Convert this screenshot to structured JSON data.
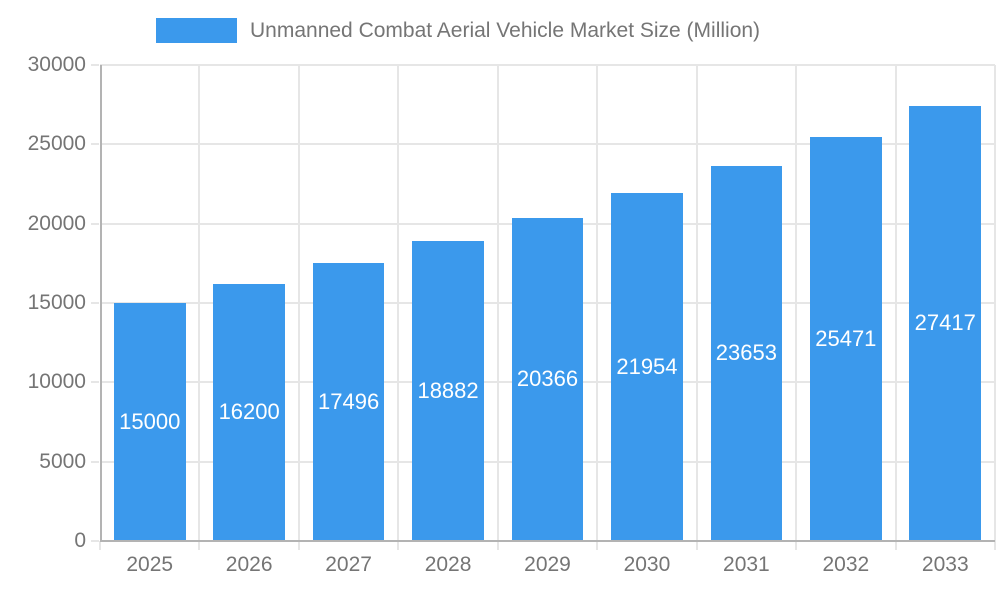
{
  "chart_data": {
    "type": "bar",
    "title": "Unmanned Combat Aerial Vehicle Market Size (Million)",
    "categories": [
      "2025",
      "2026",
      "2027",
      "2028",
      "2029",
      "2030",
      "2031",
      "2032",
      "2033"
    ],
    "values": [
      15000,
      16200,
      17496,
      18882,
      20366,
      21954,
      23653,
      25471,
      27417
    ],
    "series": [
      {
        "name": "Unmanned Combat Aerial Vehicle Market Size (Million)",
        "values": [
          15000,
          16200,
          17496,
          18882,
          20366,
          21954,
          23653,
          25471,
          27417
        ]
      }
    ],
    "xlabel": "",
    "ylabel": "",
    "ylim": [
      0,
      30000
    ],
    "yticks": [
      0,
      5000,
      10000,
      15000,
      20000,
      25000,
      30000
    ],
    "grid": true,
    "legend_position": "top",
    "value_labels": "inside-center",
    "colors": {
      "bar": "#3B99EC",
      "value_label": "#FFFFFF",
      "axis_text": "#757575",
      "axis_line": "#B3B3B3",
      "gridline": "#E6E6E6",
      "background": "#FFFFFF"
    }
  }
}
